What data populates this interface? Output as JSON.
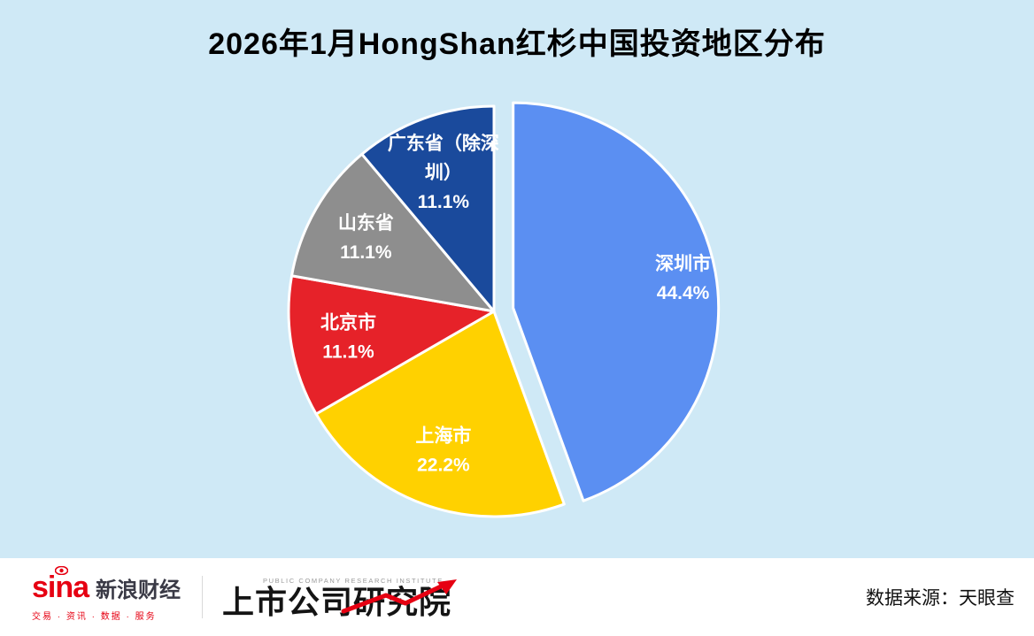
{
  "page": {
    "background": "#cfe9f6"
  },
  "title": "2026年1月HongShan红杉中国投资地区分布",
  "chart_data": {
    "type": "pie",
    "title": "2026年1月HongShan红杉中国投资地区分布",
    "unit": "percent",
    "start_angle_deg": 0,
    "direction": "clockwise",
    "legend": "none",
    "labels_position": "inside",
    "slices": [
      {
        "label": "深圳市",
        "value": 44.4,
        "percent_label": "44.4%",
        "color": "#5b8ff2",
        "exploded": true,
        "label_lines": [
          "深圳市"
        ]
      },
      {
        "label": "上海市",
        "value": 22.2,
        "percent_label": "22.2%",
        "color": "#ffd100",
        "exploded": false,
        "label_lines": [
          "上海市"
        ]
      },
      {
        "label": "北京市",
        "value": 11.1,
        "percent_label": "11.1%",
        "color": "#e62229",
        "exploded": false,
        "label_lines": [
          "北京市"
        ]
      },
      {
        "label": "山东省",
        "value": 11.1,
        "percent_label": "11.1%",
        "color": "#8e8e8e",
        "exploded": false,
        "label_lines": [
          "山东省"
        ]
      },
      {
        "label": "广东省（除深圳）",
        "value": 11.1,
        "percent_label": "11.1%",
        "color": "#1a4a9c",
        "exploded": false,
        "label_lines": [
          "广东省（除深",
          "圳）"
        ]
      }
    ]
  },
  "footer": {
    "sina": {
      "logo_text": "sina",
      "brand": "新浪财经",
      "tagline": "交易 · 资讯 · 数据 · 服务",
      "brand_color": "#e60012"
    },
    "institute": {
      "caption": "PUBLIC COMPANY RESEARCH INSTITUTE",
      "name": "上市公司研究院"
    },
    "source": "数据来源：天眼查"
  }
}
